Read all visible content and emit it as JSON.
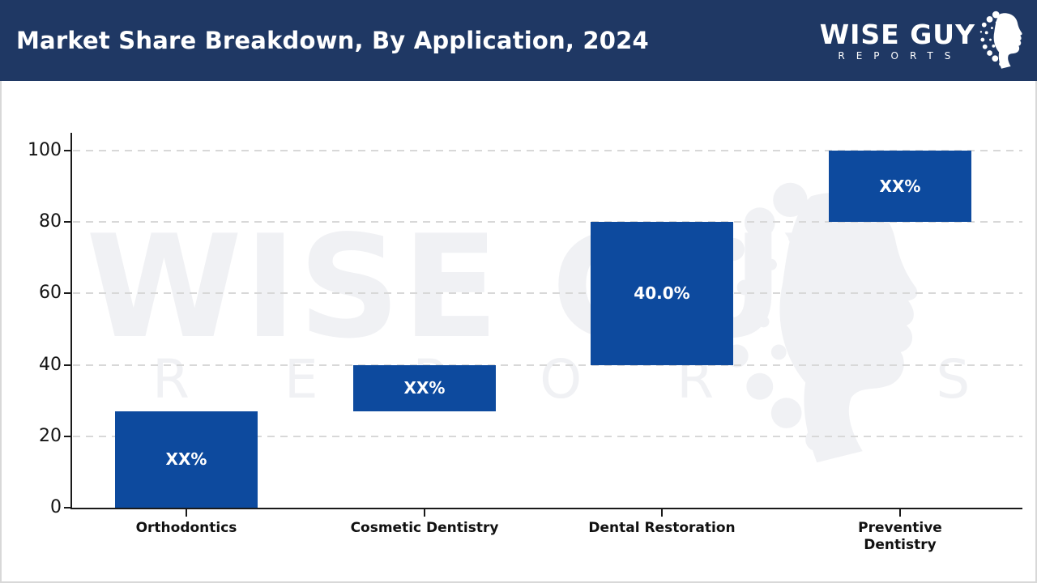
{
  "header": {
    "title": "Market Share Breakdown, By Application, 2024",
    "logo": {
      "brand": "WISE GUY",
      "sub": "REPORTS"
    }
  },
  "watermark": {
    "brand": "WISE GUY",
    "sub": "R E P O R T S"
  },
  "colors": {
    "header_bg": "#1f3864",
    "bar": "#0d4a9e",
    "axis": "#1a1a1a",
    "grid": "#d8d8d8",
    "watermark": "#f0f1f4",
    "bar_label": "#ffffff"
  },
  "chart_data": {
    "type": "bar",
    "variant": "waterfall",
    "title": "Market Share Breakdown, By Application, 2024",
    "unit": "%",
    "categories": [
      "Orthodontics",
      "Cosmetic Dentistry",
      "Dental Restoration",
      "Preventive Dentistry"
    ],
    "x_tick_labels": [
      "Orthodontics",
      "Cosmetic Dentistry",
      "Dental Restoration",
      "Preventive\nDentistry"
    ],
    "segments": [
      {
        "category": "Orthodontics",
        "start": 0,
        "end": 27,
        "value": 27,
        "label": "XX%"
      },
      {
        "category": "Cosmetic Dentistry",
        "start": 27,
        "end": 40,
        "value": 13,
        "label": "XX%"
      },
      {
        "category": "Dental Restoration",
        "start": 40,
        "end": 80,
        "value": 40,
        "label": "40.0%"
      },
      {
        "category": "Preventive Dentistry",
        "start": 80,
        "end": 100,
        "value": 20,
        "label": "XX%"
      }
    ],
    "y_ticks": [
      0,
      20,
      40,
      60,
      80,
      100
    ],
    "ylim": [
      0,
      105
    ],
    "xlabel": "",
    "ylabel": "",
    "grid": "horizontal-dashed",
    "legend": "none"
  }
}
